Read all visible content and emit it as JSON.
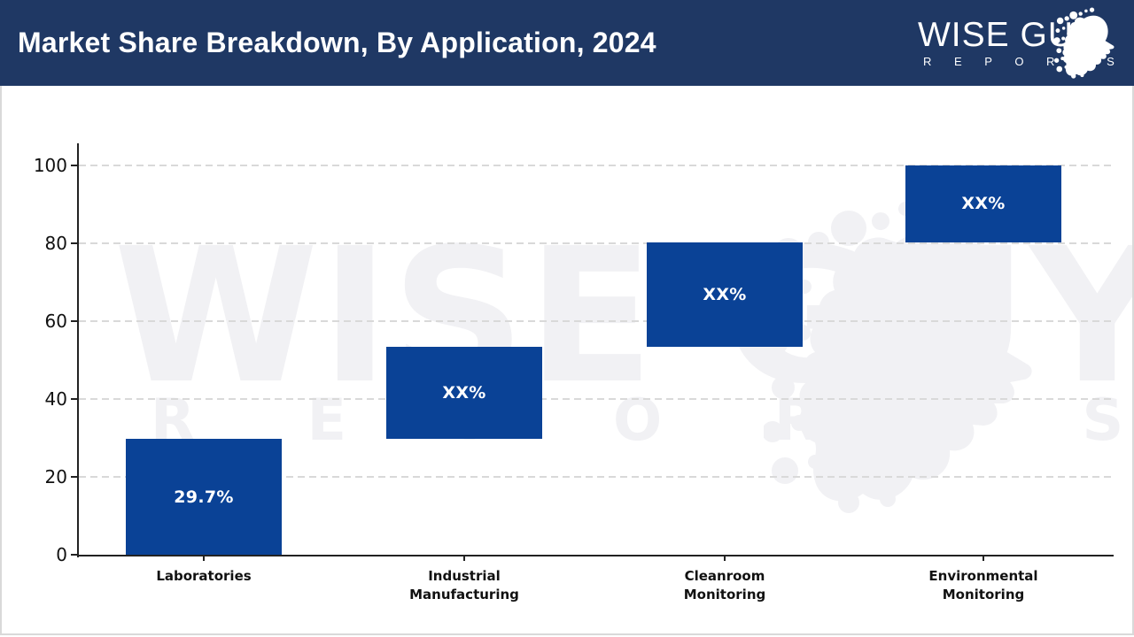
{
  "header": {
    "title": "Market Share Breakdown, By Application, 2024",
    "logo": {
      "wordmark": "WISE GUY",
      "reports": "REPORTS",
      "face_icon": "dotted-face-profile"
    }
  },
  "watermark": {
    "wordmark": "WISE GUY",
    "reports": "REPORTS",
    "face_icon": "dotted-face-profile"
  },
  "chart_data": {
    "type": "bar",
    "subtype": "waterfall",
    "title": "Market Share Breakdown, By Application, 2024",
    "categories": [
      "Laboratories",
      "Industrial Manufacturing",
      "Cleanroom Monitoring",
      "Environmental Monitoring"
    ],
    "values": [
      29.7,
      23.7,
      26.9,
      19.7
    ],
    "segments": [
      {
        "label_lines": [
          "Laboratories"
        ],
        "start": 0,
        "end": 29.7,
        "value_label": "29.7%"
      },
      {
        "label_lines": [
          "Industrial",
          "Manufacturing"
        ],
        "start": 29.7,
        "end": 53.4,
        "value_label": "XX%"
      },
      {
        "label_lines": [
          "Cleanroom",
          "Monitoring"
        ],
        "start": 53.4,
        "end": 80.3,
        "value_label": "XX%"
      },
      {
        "label_lines": [
          "Environmental",
          "Monitoring"
        ],
        "start": 80.3,
        "end": 100,
        "value_label": "XX%"
      }
    ],
    "xlabel": "",
    "ylabel": "",
    "ylim": [
      0,
      100
    ],
    "yticks": [
      0,
      20,
      40,
      60,
      80,
      100
    ],
    "grid": "horizontal-dashed",
    "legend": "none"
  },
  "colors": {
    "header_bg": "#1f3864",
    "bar": "#0a4296",
    "bar_label": "#ffffff",
    "axis": "#222222",
    "grid": "#d9d9d9",
    "watermark": "#f1f1f4",
    "border": "#d9d9d9"
  }
}
